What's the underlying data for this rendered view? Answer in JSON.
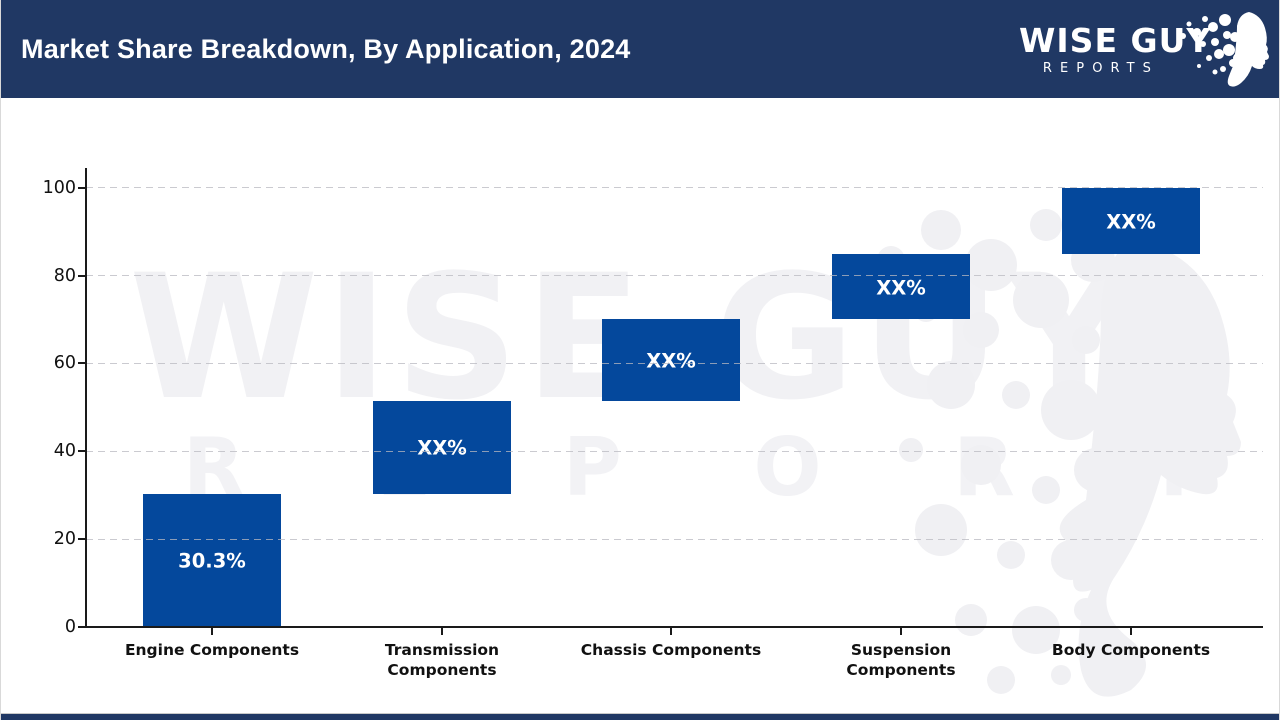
{
  "header": {
    "title": "Market Share Breakdown, By Application, 2024",
    "bg_color": "#203864",
    "logo": {
      "line1": "WISE GUY",
      "line2": "REPORTS"
    }
  },
  "watermark": {
    "line1": "WISE GUY",
    "line2": "R E P O R T S"
  },
  "chart_data": {
    "type": "bar",
    "variant": "waterfall",
    "title": "Market Share Breakdown, By Application, 2024",
    "categories": [
      "Engine Components",
      "Transmission\nComponents",
      "Chassis Components",
      "Suspension\nComponents",
      "Body Components"
    ],
    "segments": [
      {
        "label": "Engine Components",
        "start": 0,
        "end": 30.3,
        "value": 30.3,
        "value_label": "30.3%"
      },
      {
        "label": "Transmission Components",
        "start": 30.3,
        "end": 51.5,
        "value": 21.2,
        "value_label": "XX%"
      },
      {
        "label": "Chassis Components",
        "start": 51.5,
        "end": 70,
        "value": 18.5,
        "value_label": "XX%"
      },
      {
        "label": "Suspension Components",
        "start": 70,
        "end": 85,
        "value": 15,
        "value_label": "XX%"
      },
      {
        "label": "Body Components",
        "start": 85,
        "end": 100,
        "value": 15,
        "value_label": "XX%"
      }
    ],
    "yticks": [
      0,
      20,
      40,
      60,
      80,
      100
    ],
    "ylim": [
      0,
      104
    ],
    "xlabel": "",
    "ylabel": "",
    "grid": true,
    "legend": false,
    "bar_color": "#04489c",
    "value_label_color": "#ffffff"
  }
}
